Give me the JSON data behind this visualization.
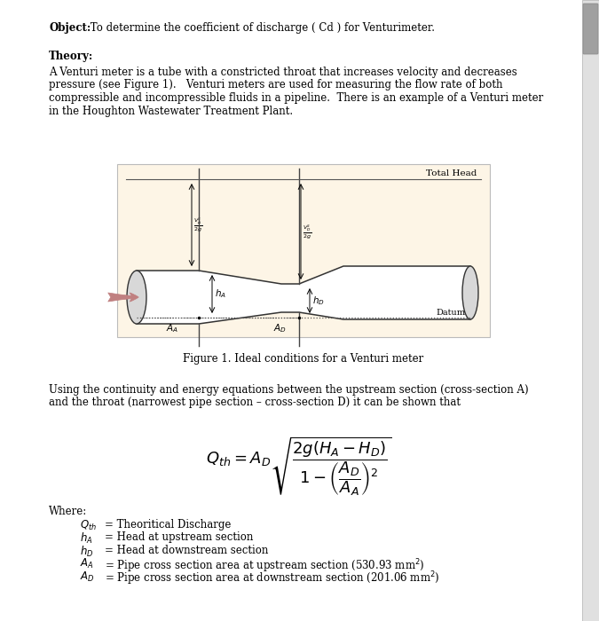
{
  "bg_color": "#ffffff",
  "diagram_bg": "#fdf5e6",
  "object_bold": "Object:",
  "object_rest": " To determine the coefficient of discharge ( Cd ) for Venturimeter.",
  "theory_header": "Theory:",
  "theory_lines": [
    "A Venturi meter is a tube with a constricted throat that increases velocity and decreases",
    "pressure (see Figure 1).   Venturi meters are used for measuring the flow rate of both",
    "compressible and incompressible fluids in a pipeline.  There is an example of a Venturi meter",
    "in the Houghton Wastewater Treatment Plant."
  ],
  "figure_caption": "Figure 1. Ideal conditions for a Venturi meter",
  "continuity_lines": [
    "Using the continuity and energy equations between the upstream section (cross-section A)",
    "and the throat (narrowest pipe section – cross-section D) it can be shown that"
  ],
  "where_header": "Where:",
  "scrollbar_color": "#c0c0c0",
  "scrollbar_bg": "#e8e8e8"
}
